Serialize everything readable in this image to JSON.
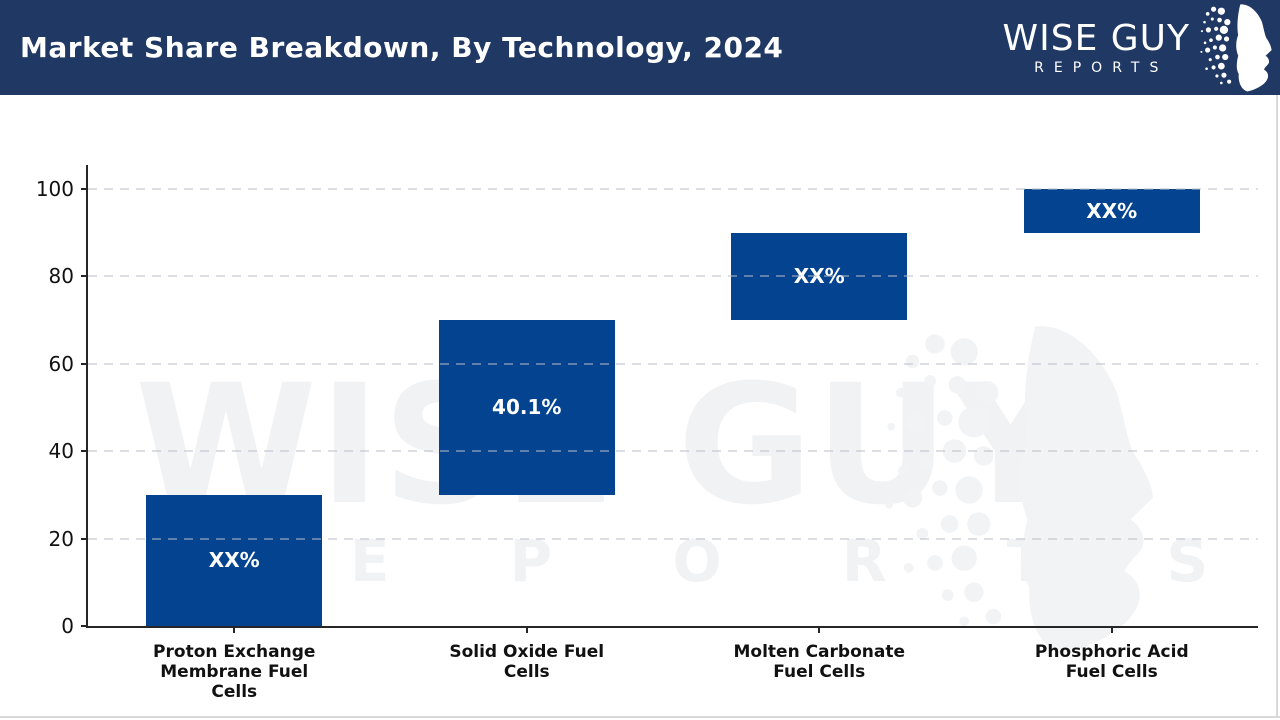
{
  "header": {
    "title": "Market Share Breakdown, By Technology, 2024"
  },
  "logo": {
    "line1": "WISE GUY",
    "line2": "REPORTS"
  },
  "watermark": {
    "line1": "WISE GUY",
    "line2": "R E P O R T S"
  },
  "colors": {
    "header_bg": "#1f3864",
    "bar": "#04438f",
    "axis": "#262626",
    "watermark": "#f1f2f4"
  },
  "chart_data": {
    "type": "bar",
    "subtype": "waterfall-stacked-breakdown",
    "title": "Market Share Breakdown, By Technology, 2024",
    "categories": [
      "Proton Exchange Membrane Fuel Cells",
      "Solid Oxide Fuel Cells",
      "Molten Carbonate Fuel Cells",
      "Phosphoric Acid Fuel Cells"
    ],
    "category_lines": [
      [
        "Proton Exchange",
        "Membrane Fuel",
        "Cells"
      ],
      [
        "Solid Oxide Fuel",
        "Cells"
      ],
      [
        "Molten Carbonate",
        "Fuel Cells"
      ],
      [
        "Phosphoric Acid",
        "Fuel Cells"
      ]
    ],
    "segments": [
      {
        "category": "Proton Exchange Membrane Fuel Cells",
        "label": "XX%",
        "start": 0,
        "end": 30
      },
      {
        "category": "Solid Oxide Fuel Cells",
        "label": "40.1%",
        "start": 30,
        "end": 70.1
      },
      {
        "category": "Molten Carbonate Fuel Cells",
        "label": "XX%",
        "start": 70.1,
        "end": 90
      },
      {
        "category": "Phosphoric Acid Fuel Cells",
        "label": "XX%",
        "start": 90,
        "end": 100
      }
    ],
    "xlabel": "",
    "ylabel": "",
    "ylim": [
      0,
      100
    ],
    "yticks": [
      0,
      20,
      40,
      60,
      80,
      100
    ],
    "grid": "horizontal-dashed",
    "legend": "none"
  }
}
